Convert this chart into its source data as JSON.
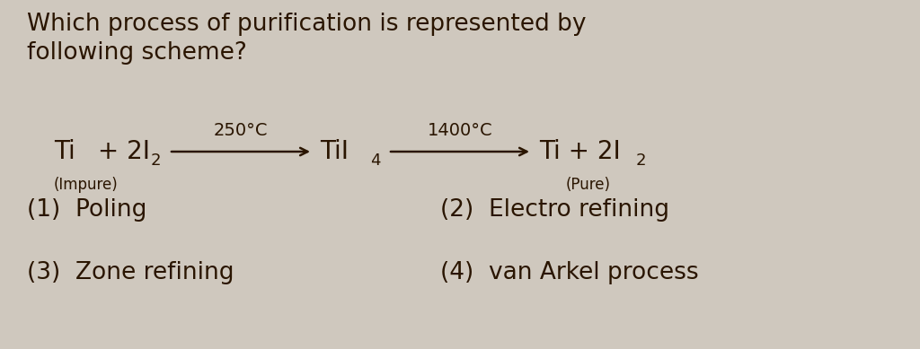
{
  "background_color": "#cfc8be",
  "title_line1": "Which process of purification is represented by",
  "title_line2": "following scheme?",
  "title_fontsize": 19,
  "title_color": "#2a1500",
  "eq_fontsize": 20,
  "sub_fontsize": 13,
  "arrow_label_fontsize": 14,
  "option_fontsize": 19,
  "options": [
    {
      "num": "(1)",
      "text": "  Poling"
    },
    {
      "num": "(2)",
      "text": "  Electro refining"
    },
    {
      "num": "(3)",
      "text": "  Zone refining"
    },
    {
      "num": "(4)",
      "text": "  van Arkel process"
    }
  ]
}
